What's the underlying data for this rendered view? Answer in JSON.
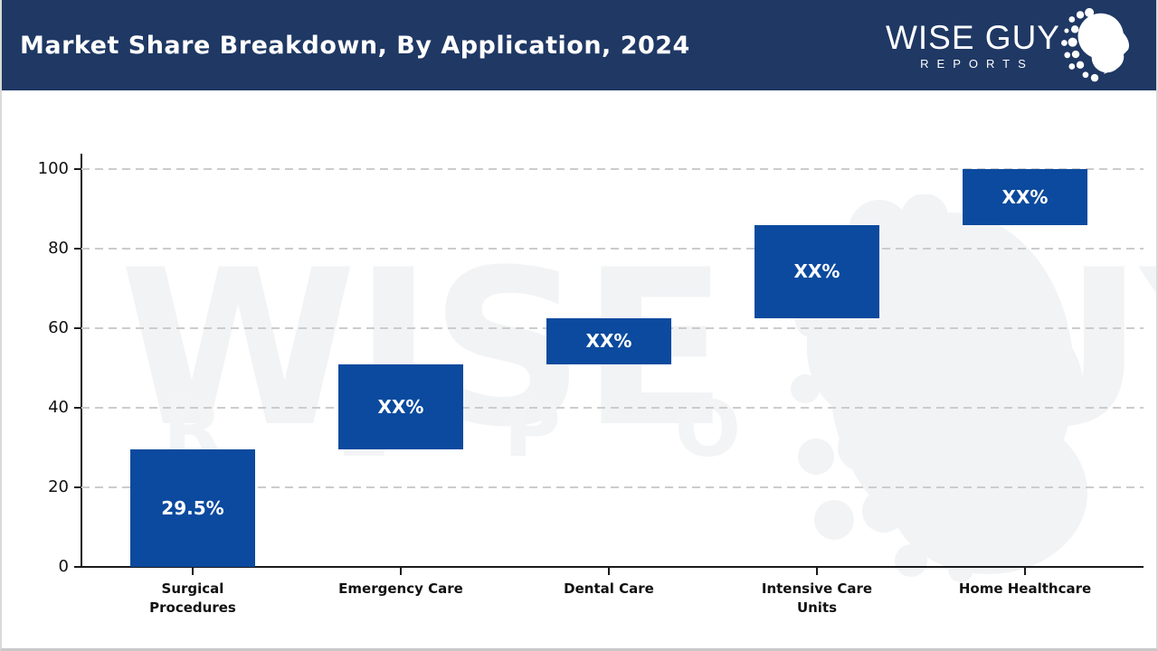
{
  "header": {
    "title": "Market Share Breakdown, By Application, 2024",
    "logo": {
      "line1": "WISE GUY",
      "line2": "REPORTS"
    }
  },
  "watermark": {
    "line1": "WISE GUY",
    "line2": "R E P O R T S"
  },
  "colors": {
    "header_bg": "#1f3864",
    "bar_fill": "#0b4a9e",
    "bar_label": "#ffffff",
    "axis": "#1a1a1a",
    "gridline": "#cccccc",
    "watermark": "#f2f3f5"
  },
  "chart_data": {
    "type": "bar",
    "subtype": "waterfall",
    "title": "Market Share Breakdown, By Application, 2024",
    "xlabel": "",
    "ylabel": "",
    "ylim": [
      0,
      105
    ],
    "yticks": [
      0,
      20,
      40,
      60,
      80,
      100
    ],
    "grid": "horizontal-dashed",
    "legend": "none",
    "categories": [
      "Surgical\nProcedures",
      "Emergency Care",
      "Dental Care",
      "Intensive Care\nUnits",
      "Home Healthcare"
    ],
    "bars": [
      {
        "category": "Surgical Procedures",
        "start": 0,
        "end": 29.5,
        "label": "29.5%"
      },
      {
        "category": "Emergency Care",
        "start": 29.5,
        "end": 51,
        "label": "XX%"
      },
      {
        "category": "Dental Care",
        "start": 51,
        "end": 62.5,
        "label": "XX%"
      },
      {
        "category": "Intensive Care Units",
        "start": 62.5,
        "end": 86,
        "label": "XX%"
      },
      {
        "category": "Home Healthcare",
        "start": 86,
        "end": 100,
        "label": "XX%"
      }
    ]
  }
}
